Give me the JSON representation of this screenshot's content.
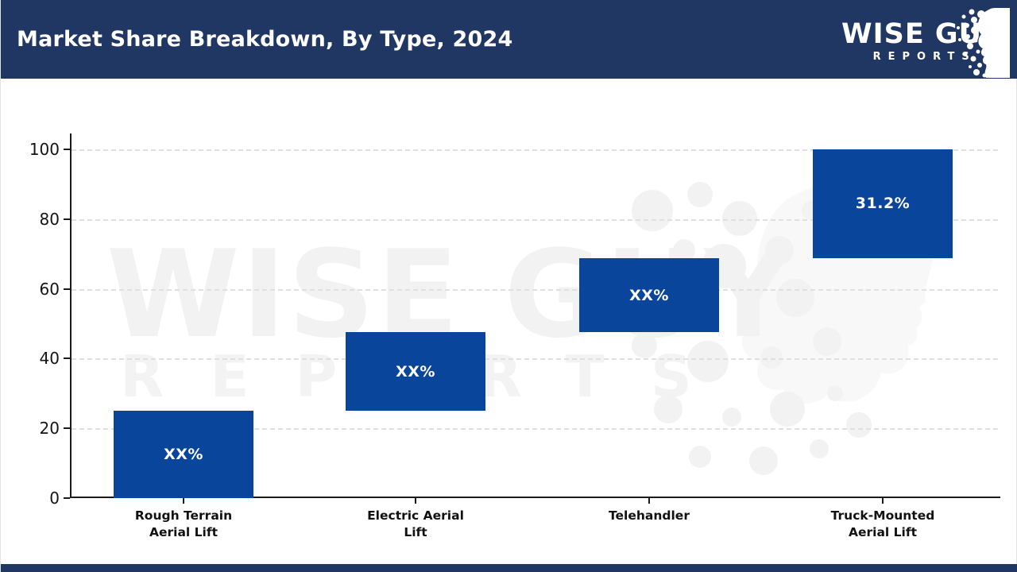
{
  "header": {
    "title": "Market Share Breakdown, By Type, 2024",
    "logo": {
      "wordmark": "WISE GUY",
      "subtext": "REPORTS"
    },
    "colors": {
      "bg": "#213763",
      "text": "#ffffff"
    }
  },
  "watermark": {
    "line1": "WISE GUY",
    "line2": "REPORTS"
  },
  "footer": {
    "bg": "#213763"
  },
  "chart_data": {
    "type": "bar",
    "variant": "waterfall-floating-bars",
    "title": "Market Share Breakdown, By Type, 2024",
    "categories": [
      "Rough Terrain Aerial Lift",
      "Electric Aerial Lift",
      "Telehandler",
      "Truck-Mounted Aerial Lift"
    ],
    "category_lines": [
      [
        "Rough Terrain",
        "Aerial Lift"
      ],
      [
        "Electric Aerial",
        "Lift"
      ],
      [
        "Telehandler"
      ],
      [
        "Truck-Mounted",
        "Aerial Lift"
      ]
    ],
    "segments": [
      {
        "category": "Rough Terrain Aerial Lift",
        "start": 0,
        "end": 25.0,
        "increment": 25.0,
        "label": "XX%"
      },
      {
        "category": "Electric Aerial Lift",
        "start": 25.0,
        "end": 47.5,
        "increment": 22.5,
        "label": "XX%"
      },
      {
        "category": "Telehandler",
        "start": 47.5,
        "end": 68.8,
        "increment": 21.3,
        "label": "XX%"
      },
      {
        "category": "Truck-Mounted Aerial Lift",
        "start": 68.8,
        "end": 100.0,
        "increment": 31.2,
        "label": "31.2%"
      }
    ],
    "ylabel": "",
    "xlabel": "",
    "yticks": [
      0,
      20,
      40,
      60,
      80,
      100
    ],
    "ylim": [
      0,
      104.5
    ],
    "grid": "horizontal-dashed",
    "legend": "none",
    "bar_color": "#0a459c",
    "bar_label_color": "#ffffff",
    "axis_color": "#1a1a1a",
    "gridline_color": "#e0e0e0"
  }
}
